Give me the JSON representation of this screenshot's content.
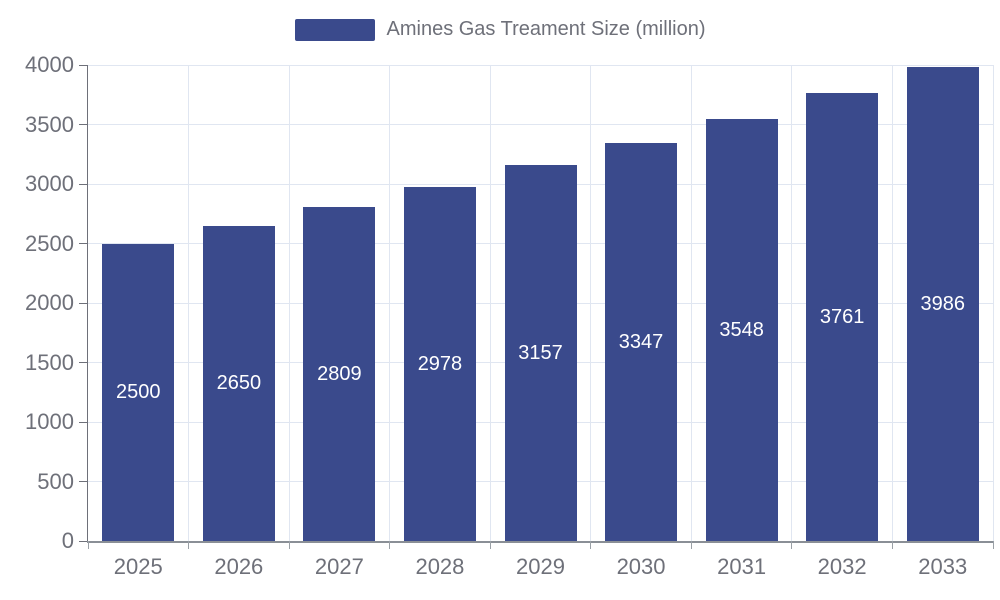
{
  "chart_data": {
    "type": "bar",
    "title": "Amines Gas Treament Size (million)",
    "categories": [
      "2025",
      "2026",
      "2027",
      "2028",
      "2029",
      "2030",
      "2031",
      "2032",
      "2033"
    ],
    "values": [
      2500,
      2650,
      2809,
      2978,
      3157,
      3347,
      3548,
      3761,
      3986
    ],
    "xlabel": "",
    "ylabel": "",
    "ylim": [
      0,
      4000
    ],
    "yticks": [
      0,
      500,
      1000,
      1500,
      2000,
      2500,
      3000,
      3500,
      4000
    ],
    "grid": true,
    "legend_position": "top",
    "value_labels": "inside-center",
    "colors": {
      "bar": "#3A4A8C",
      "axis_line": "#6E7079",
      "grid_line": "#E0E6F1",
      "tick_label": "#6E7079",
      "legend_text": "#6E7079",
      "value_label": "#FFFFFF",
      "background": "#FFFFFF"
    }
  }
}
